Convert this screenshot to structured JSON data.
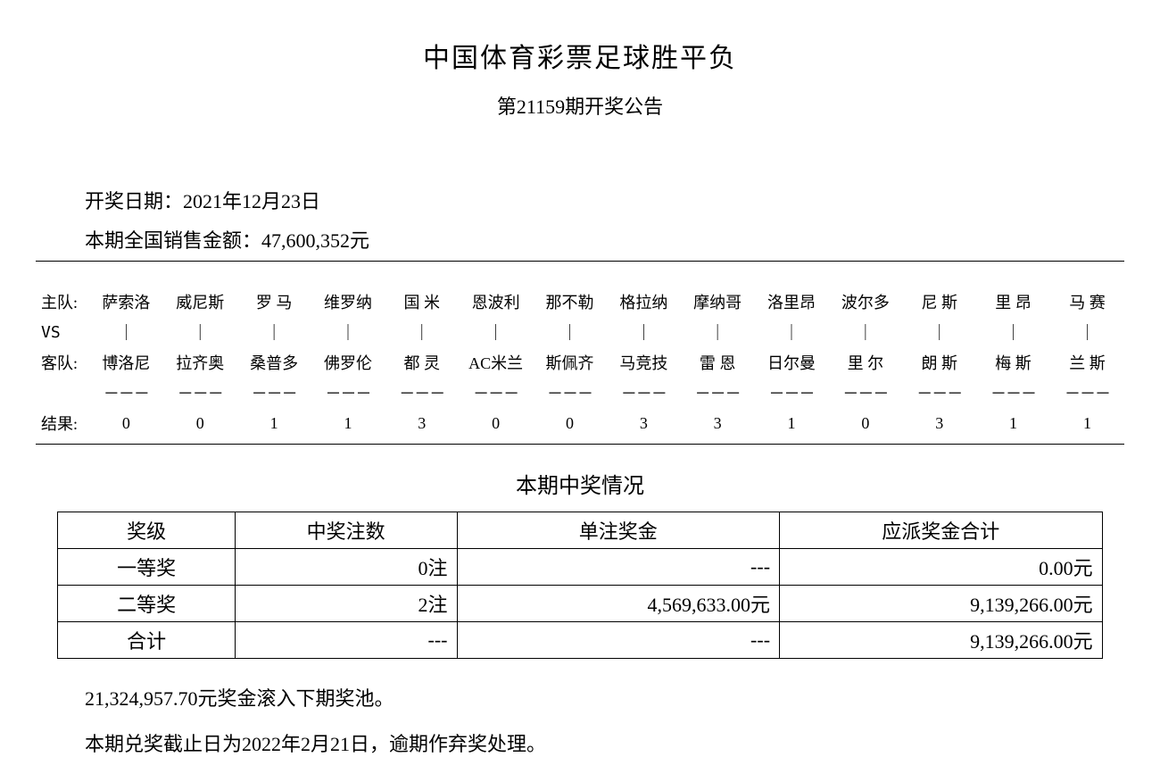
{
  "header": {
    "title": "中国体育彩票足球胜平负",
    "subtitle": "第21159期开奖公告"
  },
  "info": {
    "draw_date_label": "开奖日期：",
    "draw_date": "2021年12月23日",
    "sales_label": "本期全国销售金额：",
    "sales_amount": "47,600,352元"
  },
  "matches": {
    "row_labels": {
      "home": "主队:",
      "vs": "VS",
      "away": "客队:",
      "result": "结果:"
    },
    "home": [
      "萨索洛",
      "威尼斯",
      "罗 马",
      "维罗纳",
      "国 米",
      "恩波利",
      "那不勒",
      "格拉纳",
      "摩纳哥",
      "洛里昂",
      "波尔多",
      "尼 斯",
      "里 昂",
      "马 赛"
    ],
    "away": [
      "博洛尼",
      "拉齐奥",
      "桑普多",
      "佛罗伦",
      "都 灵",
      "AC米兰",
      "斯佩齐",
      "马竞技",
      "雷 恩",
      "日尔曼",
      "里 尔",
      "朗 斯",
      "梅 斯",
      "兰 斯"
    ],
    "result": [
      "0",
      "0",
      "1",
      "1",
      "3",
      "0",
      "0",
      "3",
      "3",
      "1",
      "0",
      "3",
      "1",
      "1"
    ],
    "vbar": "｜",
    "dash": "－－－"
  },
  "prize_section": {
    "title": "本期中奖情况",
    "columns": [
      "奖级",
      "中奖注数",
      "单注奖金",
      "应派奖金合计"
    ],
    "rows": [
      {
        "level": "一等奖",
        "count": "0注",
        "unit": "---",
        "total": "0.00元"
      },
      {
        "level": "二等奖",
        "count": "2注",
        "unit": "4,569,633.00元",
        "total": "9,139,266.00元"
      },
      {
        "level": "合计",
        "count": "---",
        "unit": "---",
        "total": "9,139,266.00元"
      }
    ]
  },
  "footer": {
    "rollover": "21,324,957.70元奖金滚入下期奖池。",
    "deadline": "本期兑奖截止日为2022年2月21日，逾期作弃奖处理。"
  },
  "style": {
    "text_color": "#000000",
    "background": "#ffffff",
    "border_color": "#000000",
    "title_fontsize": 30,
    "body_fontsize": 22,
    "match_fontsize": 18
  }
}
